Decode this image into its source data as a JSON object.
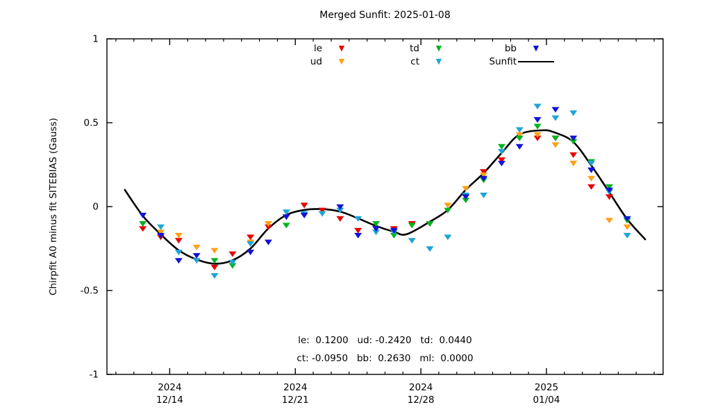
{
  "figure": {
    "title": "Merged Sunfit: 2025-01-08",
    "ylabel": "Chirpfit A0 minus fit SITEBIAS (Gauss)",
    "background": "#ffffff"
  },
  "legend": {
    "items": [
      {
        "label": "le",
        "series": "le"
      },
      {
        "label": "td",
        "series": "td"
      },
      {
        "label": "bb",
        "series": "bb"
      },
      {
        "label": "ud",
        "series": "ud"
      },
      {
        "label": "ct",
        "series": "ct"
      },
      {
        "label": "Sunfit",
        "series": "sunfit"
      }
    ]
  },
  "annotation": {
    "line1": "le:  0.1200   ud: -0.2420   td:  0.0440",
    "line2": "ct: -0.0950   bb:  0.2630   ml:  0.0000",
    "values": {
      "le": 0.12,
      "ud": -0.242,
      "td": 0.044,
      "ct": -0.095,
      "bb": 0.263,
      "ml": 0.0
    }
  },
  "chart_data": {
    "type": "scatter",
    "title": "Merged Sunfit: 2025-01-08",
    "xlabel": "",
    "ylabel": "Chirpfit A0 minus fit SITEBIAS (Gauss)",
    "x_unit": "days since 2024-12-14 00:00; data points at ~midday 2024-12-12 through 2025-01-08",
    "xlim": [
      -3.5,
      27.5
    ],
    "ylim": [
      -1,
      1
    ],
    "grid": false,
    "legend_position": "top-center-inside",
    "marker": "triangle-down",
    "minor_xtick_step": 1,
    "xticks": [
      {
        "x": 0,
        "label_top": "2024",
        "label_bottom": "12/14"
      },
      {
        "x": 7,
        "label_top": "2024",
        "label_bottom": "12/21"
      },
      {
        "x": 14,
        "label_top": "2024",
        "label_bottom": "12/28"
      },
      {
        "x": 21,
        "label_top": "2025",
        "label_bottom": "01/04"
      }
    ],
    "yticks": [
      {
        "y": -1,
        "label": "-1"
      },
      {
        "y": -0.5,
        "label": "-0.5"
      },
      {
        "y": 0,
        "label": "0"
      },
      {
        "y": 0.5,
        "label": "0.5"
      },
      {
        "y": 1,
        "label": "1"
      }
    ],
    "series": [
      {
        "name": "le",
        "color": "#e60000",
        "points": [
          [
            -1.5,
            -0.13
          ],
          [
            -0.5,
            -0.18
          ],
          [
            0.5,
            -0.2
          ],
          [
            2.5,
            -0.36
          ],
          [
            3.5,
            -0.28
          ],
          [
            4.5,
            -0.18
          ],
          [
            5.5,
            -0.12
          ],
          [
            6.5,
            -0.06
          ],
          [
            7.5,
            0.01
          ],
          [
            8.5,
            -0.02
          ],
          [
            9.5,
            -0.07
          ],
          [
            10.5,
            -0.14
          ],
          [
            11.5,
            -0.13
          ],
          [
            12.5,
            -0.13
          ],
          [
            13.5,
            -0.1
          ],
          [
            14.5,
            -0.1
          ],
          [
            17.5,
            0.21
          ],
          [
            18.5,
            0.28
          ],
          [
            20.5,
            0.41
          ],
          [
            21.5,
            0.41
          ],
          [
            22.5,
            0.31
          ],
          [
            23.5,
            0.12
          ],
          [
            24.5,
            0.06
          ]
        ]
      },
      {
        "name": "ud",
        "color": "#ffa018",
        "points": [
          [
            -0.5,
            -0.15
          ],
          [
            0.5,
            -0.17
          ],
          [
            1.5,
            -0.24
          ],
          [
            2.5,
            -0.26
          ],
          [
            4.5,
            -0.21
          ],
          [
            5.5,
            -0.1
          ],
          [
            15.5,
            0.01
          ],
          [
            16.5,
            0.11
          ],
          [
            17.5,
            0.19
          ],
          [
            19.5,
            0.43
          ],
          [
            20.5,
            0.43
          ],
          [
            21.5,
            0.37
          ],
          [
            22.5,
            0.26
          ],
          [
            23.5,
            0.17
          ],
          [
            24.5,
            -0.08
          ],
          [
            25.5,
            -0.12
          ]
        ]
      },
      {
        "name": "td",
        "color": "#00b31e",
        "points": [
          [
            -1.5,
            -0.1
          ],
          [
            2.5,
            -0.32
          ],
          [
            3.5,
            -0.35
          ],
          [
            6.5,
            -0.11
          ],
          [
            11.5,
            -0.1
          ],
          [
            12.5,
            -0.17
          ],
          [
            13.5,
            -0.11
          ],
          [
            14.5,
            -0.1
          ],
          [
            15.5,
            -0.02
          ],
          [
            16.5,
            0.04
          ],
          [
            17.5,
            0.16
          ],
          [
            18.5,
            0.36
          ],
          [
            19.5,
            0.41
          ],
          [
            20.5,
            0.48
          ],
          [
            21.5,
            0.41
          ],
          [
            22.5,
            0.39
          ],
          [
            23.5,
            0.27
          ],
          [
            24.5,
            0.12
          ],
          [
            25.5,
            -0.08
          ]
        ]
      },
      {
        "name": "ct",
        "color": "#1fa4d6",
        "points": [
          [
            -0.5,
            -0.12
          ],
          [
            0.5,
            -0.27
          ],
          [
            1.5,
            -0.32
          ],
          [
            2.5,
            -0.41
          ],
          [
            3.5,
            -0.33
          ],
          [
            4.5,
            -0.22
          ],
          [
            6.5,
            -0.03
          ],
          [
            7.5,
            -0.04
          ],
          [
            8.5,
            -0.04
          ],
          [
            9.5,
            -0.02
          ],
          [
            10.5,
            -0.07
          ],
          [
            11.5,
            -0.15
          ],
          [
            12.5,
            -0.15
          ],
          [
            13.5,
            -0.2
          ],
          [
            14.5,
            -0.25
          ],
          [
            15.5,
            -0.18
          ],
          [
            16.5,
            0.07
          ],
          [
            17.5,
            0.07
          ],
          [
            18.5,
            0.33
          ],
          [
            19.5,
            0.46
          ],
          [
            20.5,
            0.6
          ],
          [
            21.5,
            0.53
          ],
          [
            22.5,
            0.56
          ],
          [
            23.5,
            0.26
          ],
          [
            24.5,
            0.09
          ],
          [
            25.5,
            -0.17
          ]
        ]
      },
      {
        "name": "bb",
        "color": "#1212d8",
        "points": [
          [
            -1.5,
            -0.05
          ],
          [
            -0.5,
            -0.17
          ],
          [
            0.5,
            -0.32
          ],
          [
            1.5,
            -0.29
          ],
          [
            4.5,
            -0.27
          ],
          [
            5.5,
            -0.21
          ],
          [
            6.5,
            -0.06
          ],
          [
            7.5,
            -0.05
          ],
          [
            9.5,
            0.0
          ],
          [
            10.5,
            -0.17
          ],
          [
            11.5,
            -0.13
          ],
          [
            12.5,
            -0.14
          ],
          [
            16.5,
            0.06
          ],
          [
            17.5,
            0.17
          ],
          [
            18.5,
            0.26
          ],
          [
            19.5,
            0.36
          ],
          [
            20.5,
            0.52
          ],
          [
            21.5,
            0.58
          ],
          [
            22.5,
            0.41
          ],
          [
            23.5,
            0.22
          ],
          [
            24.5,
            0.1
          ],
          [
            25.5,
            -0.07
          ]
        ]
      }
    ],
    "sunfit": {
      "name": "Sunfit",
      "color": "#000000",
      "type": "line",
      "points": [
        [
          -2.5,
          0.1
        ],
        [
          -1.5,
          -0.055
        ],
        [
          -0.5,
          -0.165
        ],
        [
          0.5,
          -0.26
        ],
        [
          1.5,
          -0.315
        ],
        [
          2.5,
          -0.34
        ],
        [
          3.5,
          -0.32
        ],
        [
          4.5,
          -0.25
        ],
        [
          5.5,
          -0.13
        ],
        [
          6.5,
          -0.05
        ],
        [
          7.5,
          -0.02
        ],
        [
          8.5,
          -0.015
        ],
        [
          9.5,
          -0.03
        ],
        [
          10.5,
          -0.07
        ],
        [
          11.5,
          -0.115
        ],
        [
          12.5,
          -0.15
        ],
        [
          13.2,
          -0.165
        ],
        [
          14.5,
          -0.09
        ],
        [
          15.5,
          -0.02
        ],
        [
          16.5,
          0.1
        ],
        [
          17.5,
          0.2
        ],
        [
          18.5,
          0.32
        ],
        [
          19.5,
          0.43
        ],
        [
          20.8,
          0.455
        ],
        [
          21.5,
          0.44
        ],
        [
          22.5,
          0.385
        ],
        [
          23.5,
          0.245
        ],
        [
          24.5,
          0.085
        ],
        [
          25.5,
          -0.075
        ],
        [
          26.5,
          -0.195
        ]
      ]
    }
  }
}
